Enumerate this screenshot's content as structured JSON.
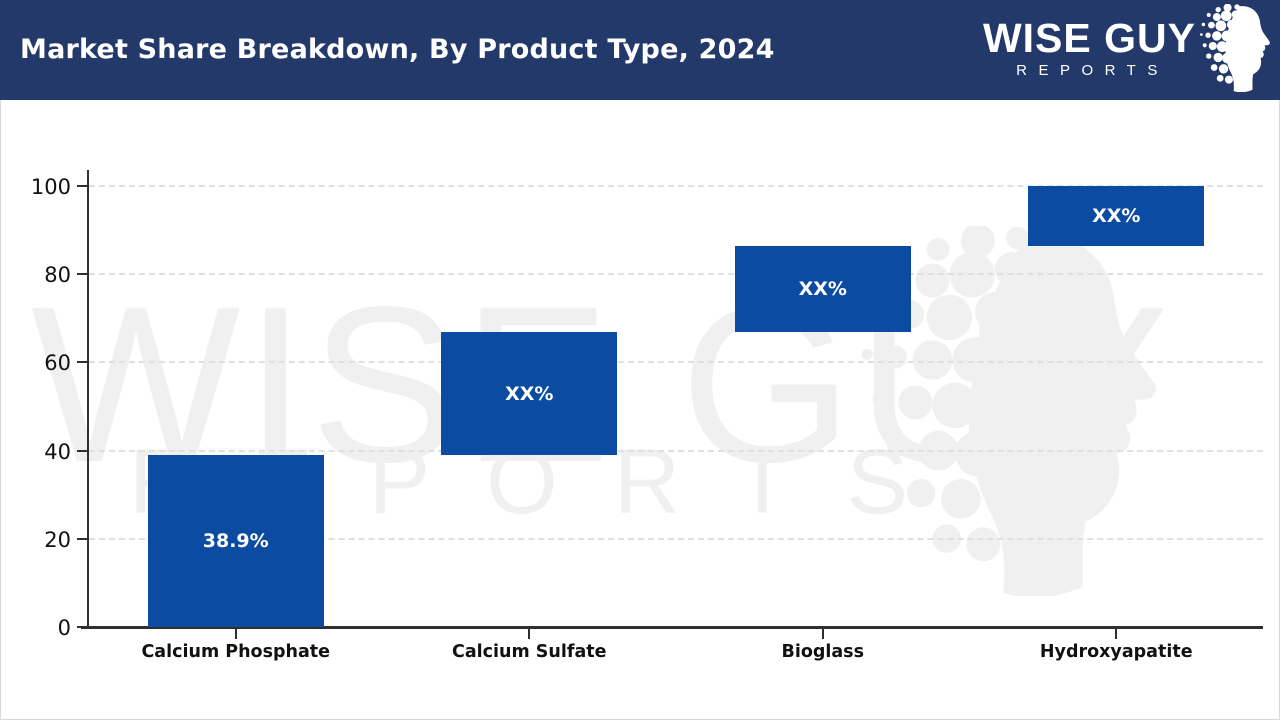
{
  "header": {
    "title": "Market Share Breakdown, By Product Type, 2024",
    "bg_color": "#22396a",
    "logo": {
      "line1": "WISE GUY",
      "line2": "REPORTS"
    }
  },
  "watermark": {
    "line1": "WISE GUY",
    "line2": "REPORTS"
  },
  "chart_data": {
    "type": "bar",
    "subtype": "waterfall",
    "title": "Market Share Breakdown, By Product Type, 2024",
    "categories": [
      "Calcium Phosphate",
      "Calcium Sulfate",
      "Bioglass",
      "Hydroxyapatite"
    ],
    "segments": [
      {
        "category": "Calcium Phosphate",
        "start": 0,
        "end": 38.9,
        "label": "38.9%"
      },
      {
        "category": "Calcium Sulfate",
        "start": 38.9,
        "end": 66.9,
        "label": "XX%"
      },
      {
        "category": "Bioglass",
        "start": 66.9,
        "end": 86.4,
        "label": "XX%"
      },
      {
        "category": "Hydroxyapatite",
        "start": 86.4,
        "end": 100,
        "label": "XX%"
      }
    ],
    "ylim": [
      0,
      100
    ],
    "yticks": [
      0,
      20,
      40,
      60,
      80,
      100
    ],
    "xlabel": "",
    "ylabel": "",
    "grid": "horizontal-dashed",
    "legend": "none",
    "bar_color": "#0b4ba2",
    "bar_label_color": "#ffffff"
  }
}
